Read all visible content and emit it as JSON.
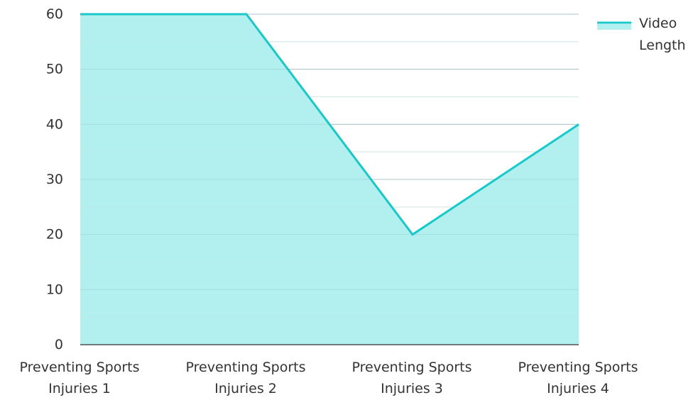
{
  "chart_data": {
    "type": "area",
    "title": "",
    "xlabel": "",
    "ylabel": "",
    "categories": [
      [
        "Preventing Sports",
        "Injuries 1"
      ],
      [
        "Preventing Sports",
        "Injuries 2"
      ],
      [
        "Preventing Sports",
        "Injuries 3"
      ],
      [
        "Preventing Sports",
        "Injuries 4"
      ]
    ],
    "ylim": [
      0,
      60
    ],
    "yticks": [
      0,
      10,
      20,
      30,
      40,
      50,
      60
    ],
    "grid": true,
    "legend_position": "top-right",
    "series": [
      {
        "name": "Video Length",
        "legend_lines": [
          "Video",
          "Length"
        ],
        "values": [
          60,
          60,
          20,
          40
        ],
        "line_color": "#19c9c9",
        "fill_color": "#b2efef"
      }
    ]
  }
}
